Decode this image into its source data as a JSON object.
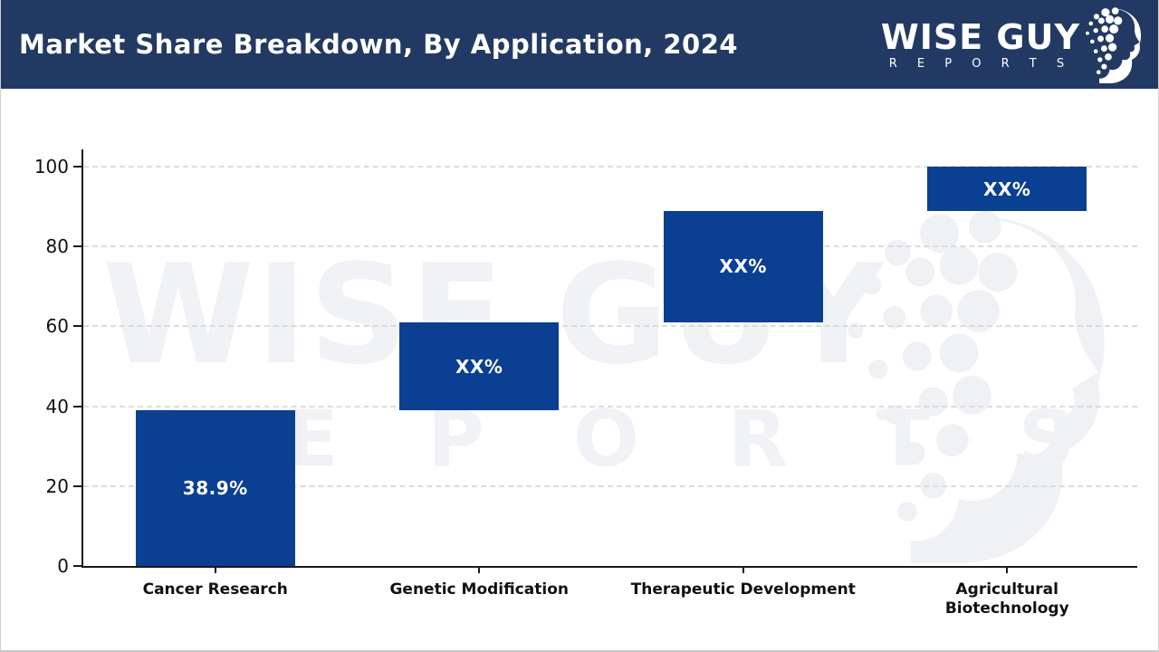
{
  "header": {
    "title": "Market Share Breakdown, By Application, 2024",
    "brand_line1": "WISE GUY",
    "brand_line2": "R E P O R T S",
    "bg_color": "#223a63"
  },
  "watermark": {
    "line1": "WISE GUY",
    "line2": "R E P O R T S"
  },
  "chart_data": {
    "type": "bar",
    "subtype": "waterfall",
    "title": "Market Share Breakdown, By Application, 2024",
    "categories": [
      "Cancer Research",
      "Genetic Modification",
      "Therapeutic Development",
      "Agricultural Biotechnology"
    ],
    "segments": [
      {
        "start": 0,
        "end": 38.9,
        "label": "38.9%"
      },
      {
        "start": 38.9,
        "end": 61.1,
        "label": "XX%"
      },
      {
        "start": 61.1,
        "end": 88.9,
        "label": "XX%"
      },
      {
        "start": 88.9,
        "end": 100,
        "label": "XX%"
      }
    ],
    "bar_color": "#0a3f92",
    "label_color": "#ffffff",
    "ylim": [
      0,
      100
    ],
    "yticks": [
      0,
      20,
      40,
      60,
      80,
      100
    ],
    "grid": "horizontal-dashed",
    "legend": "none"
  }
}
